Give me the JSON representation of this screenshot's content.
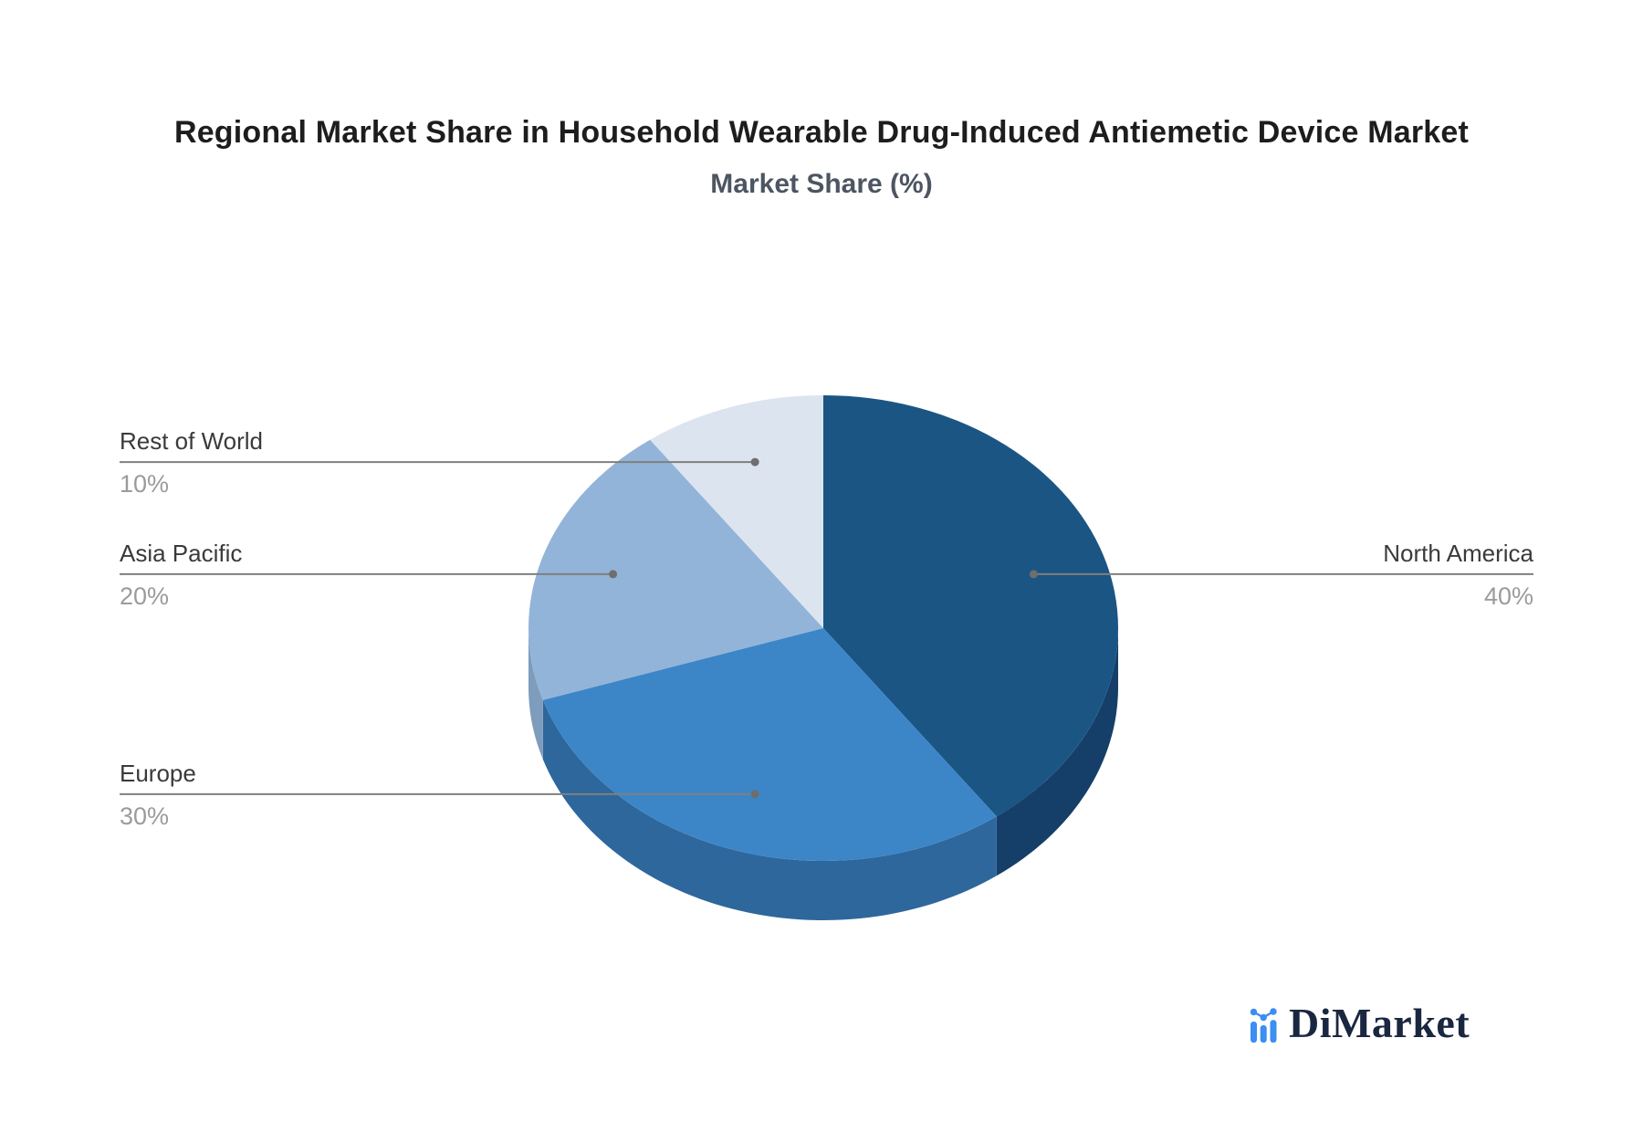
{
  "title": "Regional Market Share in Household Wearable Drug-Induced Antiemetic Device Market",
  "subtitle": "Market Share (%)",
  "chart_data": {
    "type": "pie",
    "title": "Regional Market Share in Household Wearable Drug-Induced Antiemetic Device Market",
    "subtitle": "Market Share (%)",
    "unit": "%",
    "style": "3d-pie",
    "start_angle_deg": 0,
    "direction": "clockwise",
    "legend": false,
    "label_color": "#3a3a3a",
    "value_color": "#9b9b9b",
    "leader_color": "#7f7f7f",
    "dot_color": "#6e6e6e",
    "slices": [
      {
        "label": "North America",
        "value": 40,
        "color": "#1b5584",
        "side_color": "#153f68"
      },
      {
        "label": "Europe",
        "value": 30,
        "color": "#3c86c8",
        "side_color": "#2e679c"
      },
      {
        "label": "Asia Pacific",
        "value": 20,
        "color": "#92b4d8",
        "side_color": "#7e9cbb"
      },
      {
        "label": "Rest of World",
        "value": 10,
        "color": "#dce4ef",
        "side_color": "#b4c4d8"
      }
    ]
  },
  "branding": {
    "logo_text": "DiMarket",
    "logo_icon": "bar-chart-icon",
    "logo_icon_color": "#3b8ef2",
    "logo_text_color": "#1a2740"
  }
}
